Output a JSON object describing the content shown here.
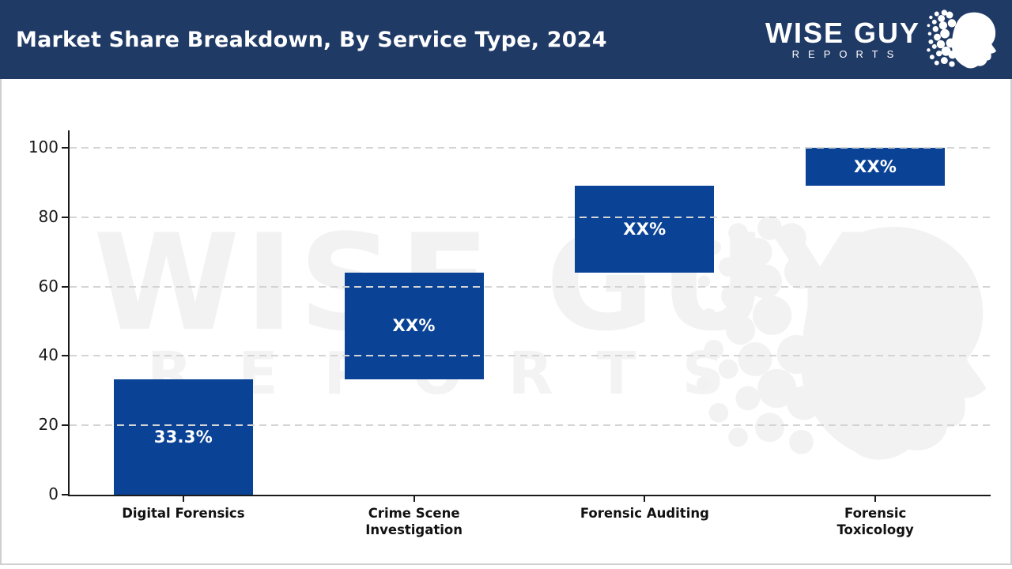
{
  "header": {
    "title": "Market Share Breakdown, By Service Type, 2024",
    "logo": {
      "line1": "WISE GUY",
      "line2": "REPORTS"
    }
  },
  "watermark": {
    "line1": "WISE GUY",
    "line2": "REPORTS"
  },
  "colors": {
    "header_bg": "#203a66",
    "bar": "#0a4296",
    "axis": "#1a1a1a",
    "grid": "#d4d4d4",
    "bar_label": "#ffffff",
    "watermark": "#f2f2f2",
    "card_border": "#cfcfcf"
  },
  "chart_data": {
    "type": "bar",
    "subtype": "floating_cumulative_segments",
    "title": "Market Share Breakdown, By Service Type, 2024",
    "categories": [
      "Digital Forensics",
      "Crime Scene\nInvestigation",
      "Forensic Auditing",
      "Forensic\nToxicology"
    ],
    "segments": [
      {
        "category": "Digital Forensics",
        "start": 0,
        "end": 33.3,
        "label": "33.3%"
      },
      {
        "category": "Crime Scene Investigation",
        "start": 33.3,
        "end": 64,
        "label": "XX%"
      },
      {
        "category": "Forensic Auditing",
        "start": 64,
        "end": 89,
        "label": "XX%"
      },
      {
        "category": "Forensic Toxicology",
        "start": 89,
        "end": 100,
        "label": "XX%"
      }
    ],
    "xlabel": "",
    "ylabel": "",
    "ylim": [
      0,
      100
    ],
    "yticks": [
      0,
      20,
      40,
      60,
      80,
      100
    ],
    "grid": "horizontal-dashed-over-bars",
    "legend": "none",
    "bar_color": "#0a4296",
    "bar_label_color": "#ffffff"
  }
}
